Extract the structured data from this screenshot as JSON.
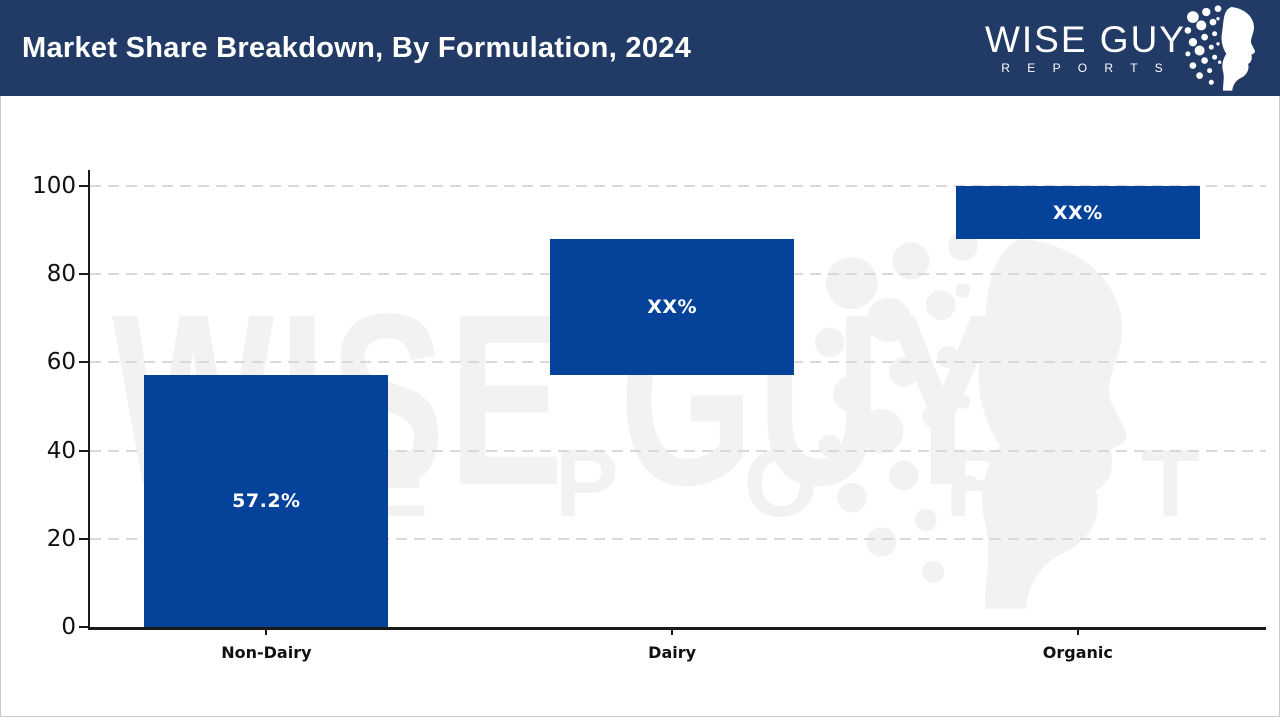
{
  "header": {
    "title": "Market Share Breakdown, By Formulation, 2024",
    "logo": {
      "brand": "WISE GUY",
      "sub": "R E P O R T S"
    }
  },
  "watermark": {
    "brand": "WISE GUY",
    "sub": "R E P O R T S"
  },
  "colors": {
    "header_bg": "#213a66",
    "bar": "#05429a",
    "grid": "#d9d9d9",
    "axis": "#1a1a1a",
    "bar_label": "#ffffff",
    "watermark": "#f2f2f2",
    "frame_line": "#c8c8c8"
  },
  "chart_data": {
    "type": "bar",
    "subtype": "waterfall",
    "title": "Market Share Breakdown, By Formulation, 2024",
    "categories": [
      "Non-Dairy",
      "Dairy",
      "Organic"
    ],
    "segments": [
      {
        "category": "Non-Dairy",
        "start": 0,
        "end": 57.2,
        "label": "57.2%"
      },
      {
        "category": "Dairy",
        "start": 57.2,
        "end": 87.9,
        "label": "XX%"
      },
      {
        "category": "Organic",
        "start": 87.9,
        "end": 100,
        "label": "XX%"
      }
    ],
    "ylim": [
      0,
      100
    ],
    "yticks": [
      0,
      20,
      40,
      60,
      80,
      100
    ],
    "grid": "horizontal-dashed",
    "legend": "none",
    "xlabel": "",
    "ylabel": ""
  }
}
